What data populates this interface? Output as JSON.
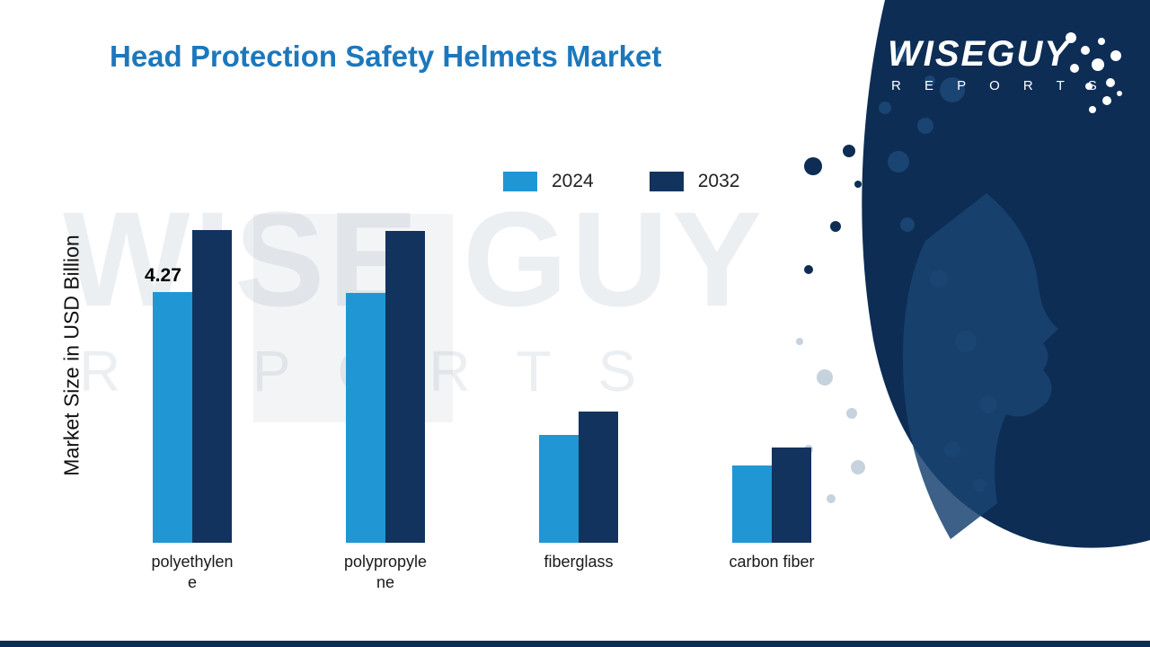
{
  "title": "Head Protection Safety Helmets Market",
  "y_axis_label": "Market Size in USD Billion",
  "watermark": {
    "line1": "WISE GUY",
    "line2": "REPORTS"
  },
  "logo": {
    "line1": "WISEGUY",
    "line2": "R E P O R T S"
  },
  "colors": {
    "series_2024": "#2097d4",
    "series_2032": "#12335e",
    "title_blue": "#1c78bc",
    "deco_navy": "#0d2d55"
  },
  "chart_data": {
    "type": "bar",
    "title": "Head Protection Safety Helmets Market",
    "ylabel": "Market Size in USD Billion",
    "xlabel": "",
    "ylim": [
      0,
      5.5
    ],
    "grid": false,
    "legend_position": "top",
    "categories": [
      "polyethylene",
      "polypropylene",
      "fiberglass",
      "carbon fiber"
    ],
    "series": [
      {
        "name": "2024",
        "color": "#2097d4",
        "values": [
          4.27,
          4.25,
          1.83,
          1.31
        ]
      },
      {
        "name": "2032",
        "color": "#12335e",
        "values": [
          5.32,
          5.3,
          2.23,
          1.62
        ]
      }
    ],
    "annotations": [
      {
        "series": "2024",
        "category": "polyethylene",
        "text": "4.27"
      }
    ]
  }
}
